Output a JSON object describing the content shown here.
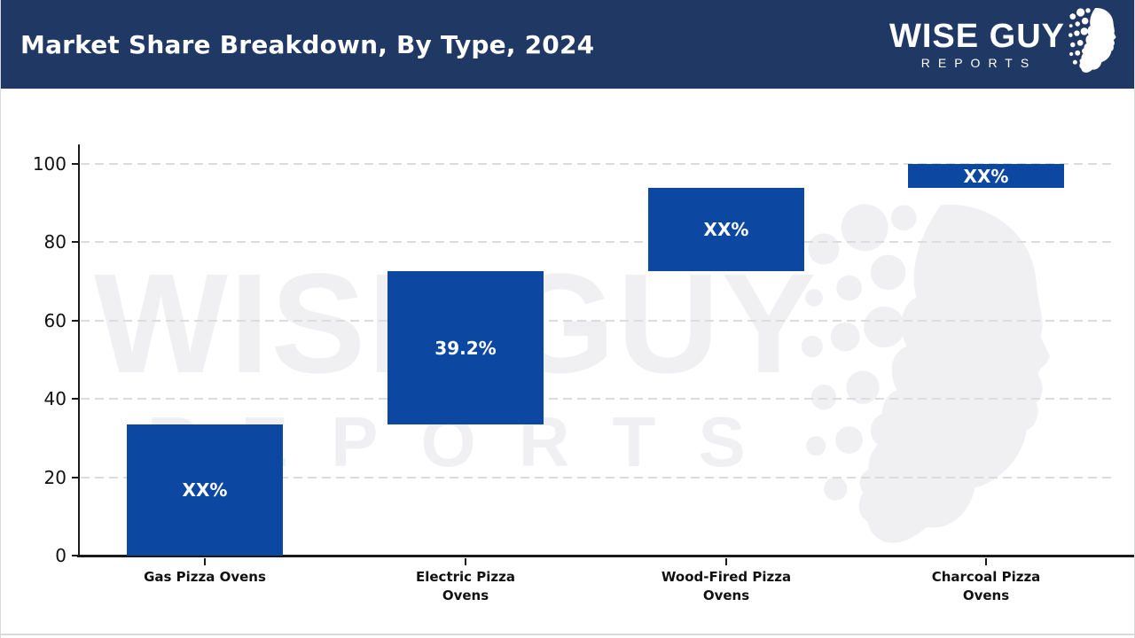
{
  "header": {
    "title": "Market Share Breakdown, By Type, 2024",
    "brand": {
      "line1": "WISE GUY",
      "line2": "REPORTS"
    }
  },
  "watermark": {
    "line1": "WISE GUY",
    "line2": "REPORTS"
  },
  "icons": {
    "brand_face": "dotted-head-profile",
    "watermark_face": "dotted-head-profile"
  },
  "chart_data": {
    "type": "bar",
    "variant": "waterfall",
    "title": "Market Share Breakdown, By Type, 2024",
    "categories": [
      "Gas Pizza Ovens",
      "Electric Pizza Ovens",
      "Wood-Fired Pizza Ovens",
      "Charcoal Pizza Ovens"
    ],
    "category_lines": [
      [
        "Gas Pizza Ovens"
      ],
      [
        "Electric Pizza",
        "Ovens"
      ],
      [
        "Wood-Fired Pizza",
        "Ovens"
      ],
      [
        "Charcoal Pizza",
        "Ovens"
      ]
    ],
    "series": [
      {
        "name": "Gas Pizza Ovens",
        "start": 0,
        "end": 33.4,
        "value": 33.4,
        "label": "XX%"
      },
      {
        "name": "Electric Pizza Ovens",
        "start": 33.4,
        "end": 72.6,
        "value": 39.2,
        "label": "39.2%"
      },
      {
        "name": "Wood-Fired Pizza Ovens",
        "start": 72.6,
        "end": 93.8,
        "value": 21.2,
        "label": "XX%"
      },
      {
        "name": "Charcoal Pizza Ovens",
        "start": 93.8,
        "end": 100,
        "value": 6.2,
        "label": "XX%"
      }
    ],
    "xlabel": "",
    "ylabel": "",
    "yticks": [
      0,
      20,
      40,
      60,
      80,
      100
    ],
    "ylim": [
      0,
      105
    ],
    "grid": "horizontal-dashed",
    "legend": "none",
    "colors": {
      "bar": "#0c47a1",
      "grid": "#dcdcdc",
      "axis": "#1a1a1a",
      "header_bg": "#203864",
      "watermark": "#f0f0f2"
    }
  }
}
